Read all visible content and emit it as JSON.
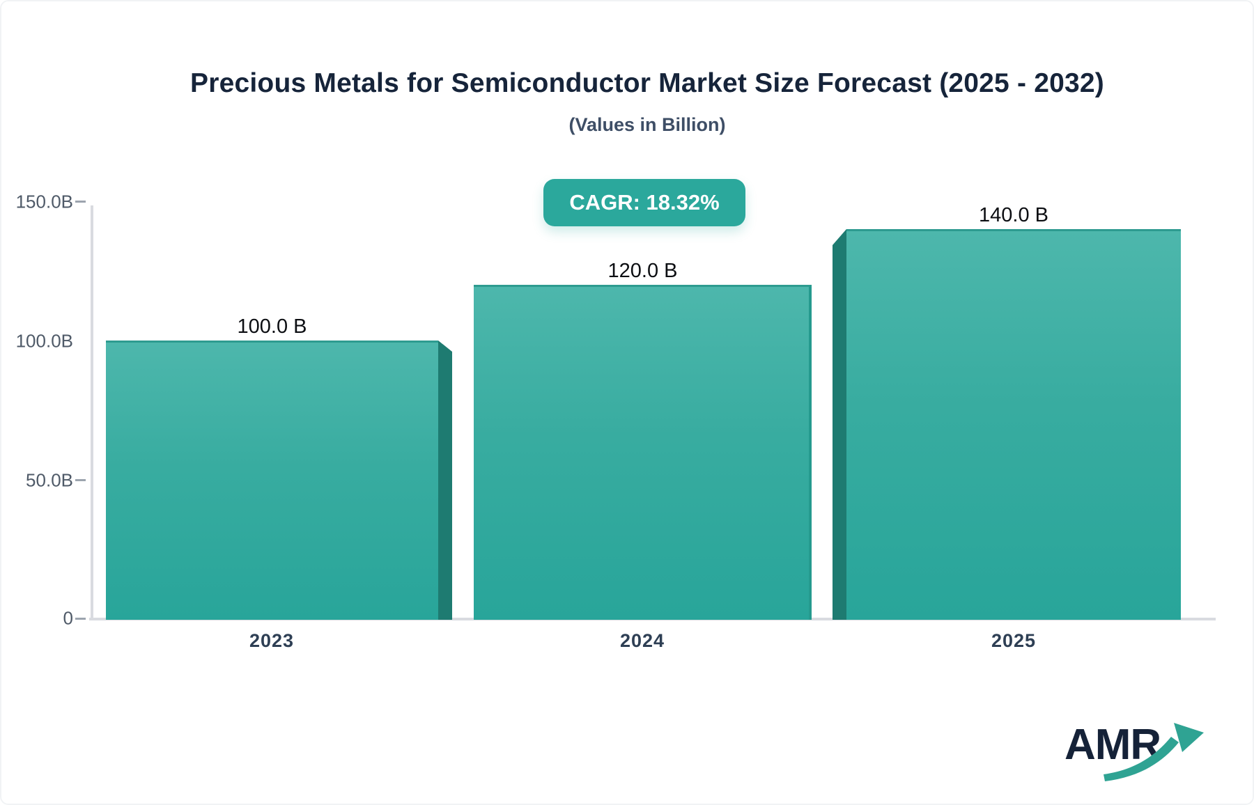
{
  "title": "Precious Metals for Semiconductor Market Size Forecast (2025 - 2032)",
  "subtitle": "(Values in Billion)",
  "cagr_badge": "CAGR: 18.32%",
  "logo": {
    "text": "AMR"
  },
  "colors": {
    "bar_face_top": "#4DB7AC",
    "bar_face_bottom": "#28A59A",
    "bar_side_dark": "#1E7B71",
    "badge_bg": "#2BA89C",
    "axis_line": "#D9DBE0",
    "title_text": "#16243A",
    "tick_text": "#4F5A68",
    "year_text": "#2E3F54",
    "value_text": "#0C0E12",
    "logo_navy": "#152238",
    "logo_teal": "#2FA393"
  },
  "chart_data": {
    "type": "bar",
    "title": "Precious Metals for Semiconductor Market Size Forecast (2025 - 2032)",
    "subtitle": "(Values in Billion)",
    "categories": [
      "2023",
      "2024",
      "2025"
    ],
    "values": [
      100,
      120,
      140
    ],
    "value_labels": [
      "100.0 B",
      "120.0 B",
      "140.0 B"
    ],
    "unit": "Billion",
    "ylim": [
      0,
      150
    ],
    "yticks": [
      {
        "value": 150,
        "label": "150.0B"
      },
      {
        "value": 100,
        "label": "100.0B"
      },
      {
        "value": 50,
        "label": "50.0B"
      },
      {
        "value": 0,
        "label": "0"
      }
    ],
    "grid": false,
    "legend": false,
    "bar_style": "3d-extruded-teal",
    "annotations": [
      "CAGR: 18.32%"
    ]
  }
}
